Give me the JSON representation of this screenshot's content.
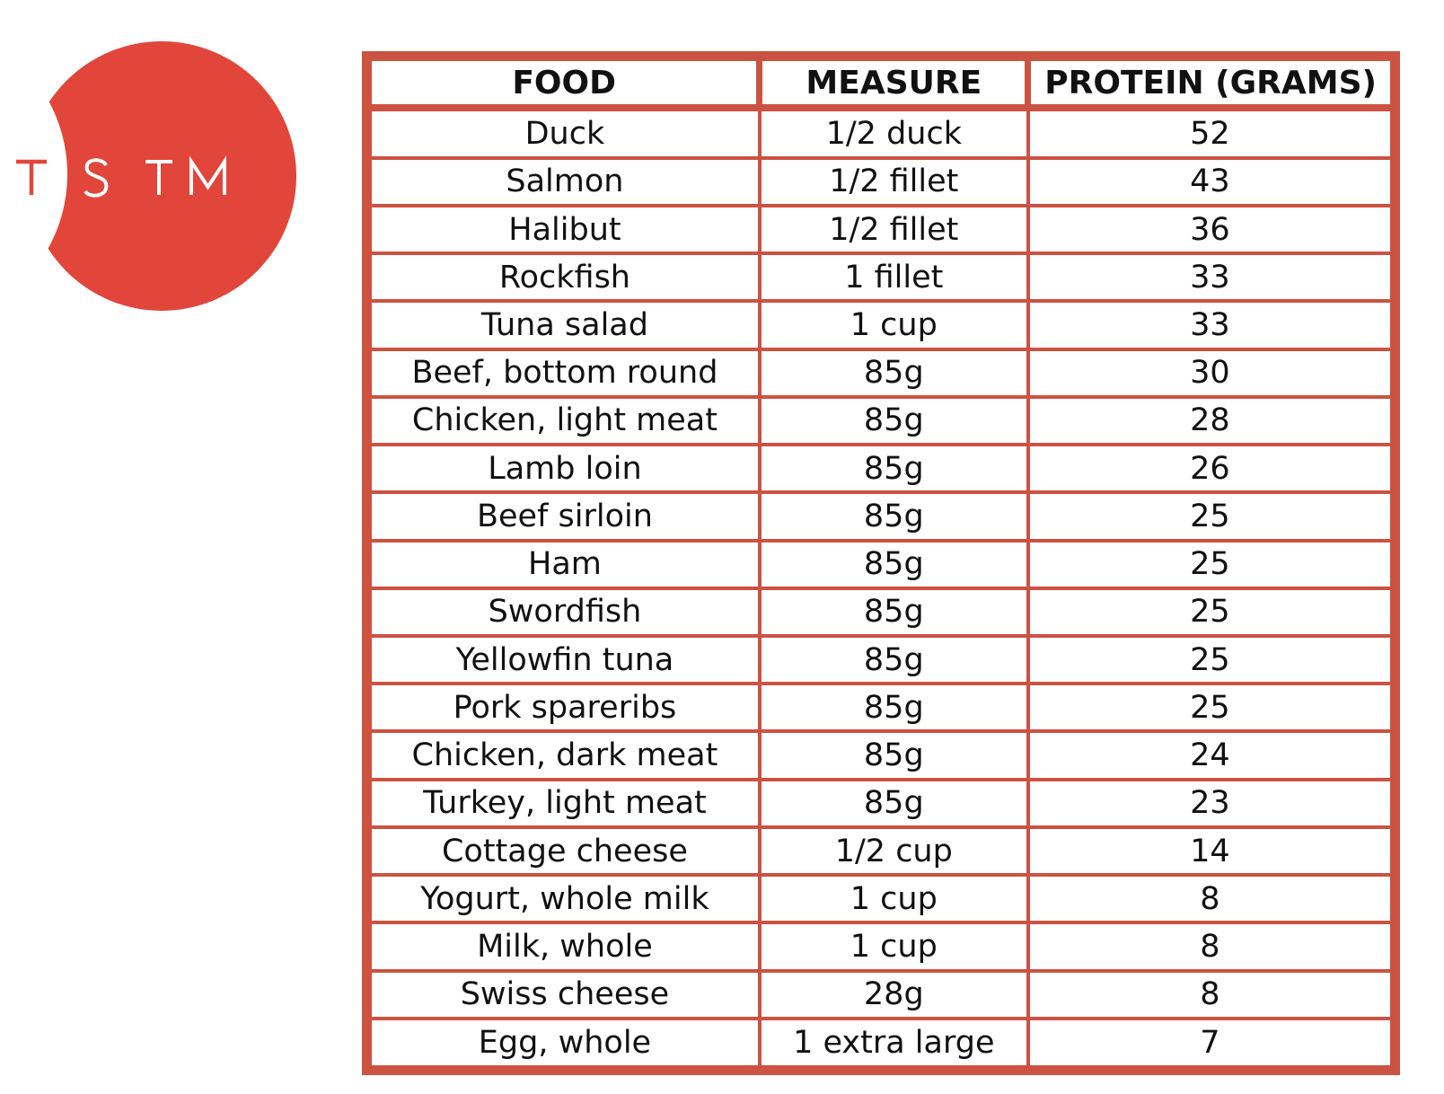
{
  "page": {
    "background": "#ffffff"
  },
  "logo": {
    "text": "TSTM",
    "letters": [
      "T",
      "S",
      "T",
      "M"
    ],
    "color": "#e2453a",
    "shape": "red-circle-with-left-crescent-bite"
  },
  "table": {
    "border_color": "#cc5242",
    "text_color": "#111111",
    "headers": [
      "FOOD",
      "MEASURE",
      "PROTEIN (GRAMS)"
    ],
    "rows": [
      [
        "Duck",
        "1/2 duck",
        "52"
      ],
      [
        "Salmon",
        "1/2 fillet",
        "43"
      ],
      [
        "Halibut",
        "1/2 fillet",
        "36"
      ],
      [
        "Rockfish",
        "1 fillet",
        "33"
      ],
      [
        "Tuna salad",
        "1 cup",
        "33"
      ],
      [
        "Beef, bottom round",
        "85g",
        "30"
      ],
      [
        "Chicken, light meat",
        "85g",
        "28"
      ],
      [
        "Lamb loin",
        "85g",
        "26"
      ],
      [
        "Beef sirloin",
        "85g",
        "25"
      ],
      [
        "Ham",
        "85g",
        "25"
      ],
      [
        "Swordfish",
        "85g",
        "25"
      ],
      [
        "Yellowfin tuna",
        "85g",
        "25"
      ],
      [
        "Pork spareribs",
        "85g",
        "25"
      ],
      [
        "Chicken, dark meat",
        "85g",
        "24"
      ],
      [
        "Turkey, light meat",
        "85g",
        "23"
      ],
      [
        "Cottage cheese",
        "1/2 cup",
        "14"
      ],
      [
        "Yogurt, whole milk",
        "1 cup",
        "8"
      ],
      [
        "Milk, whole",
        "1 cup",
        "8"
      ],
      [
        "Swiss cheese",
        "28g",
        "8"
      ],
      [
        "Egg, whole",
        "1 extra large",
        "7"
      ]
    ]
  }
}
